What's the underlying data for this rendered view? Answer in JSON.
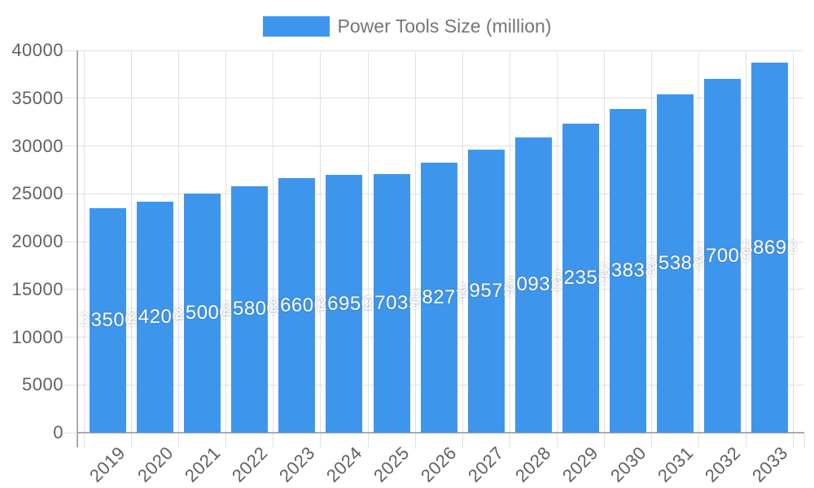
{
  "legend": {
    "label": "Power Tools Size (million)"
  },
  "chart_data": {
    "type": "bar",
    "title": "Power Tools Size (million)",
    "categories": [
      "2019",
      "2020",
      "2021",
      "2022",
      "2023",
      "2024",
      "2025",
      "2026",
      "2027",
      "2028",
      "2029",
      "2030",
      "2031",
      "2032",
      "2033"
    ],
    "values": [
      23500,
      24200,
      25000,
      25800,
      26600,
      26950,
      27035,
      28277,
      29575,
      30932,
      32355,
      33838,
      35388,
      37000,
      38693
    ],
    "yticks": [
      "0",
      "5000",
      "10000",
      "15000",
      "20000",
      "25000",
      "30000",
      "35000",
      "40000"
    ],
    "ylim": [
      0,
      40000
    ],
    "grid": true,
    "legend_position": "top-center",
    "x_label_rotation": -45,
    "bar_color": "#3e96ec",
    "bar_label_color": "#ffffff",
    "axis_label_color": "#616161",
    "legend_text_color": "#757575",
    "gridline_color": "#e0e0e0",
    "axis_line_color": "#ababab",
    "background_color": "#ffffff"
  }
}
